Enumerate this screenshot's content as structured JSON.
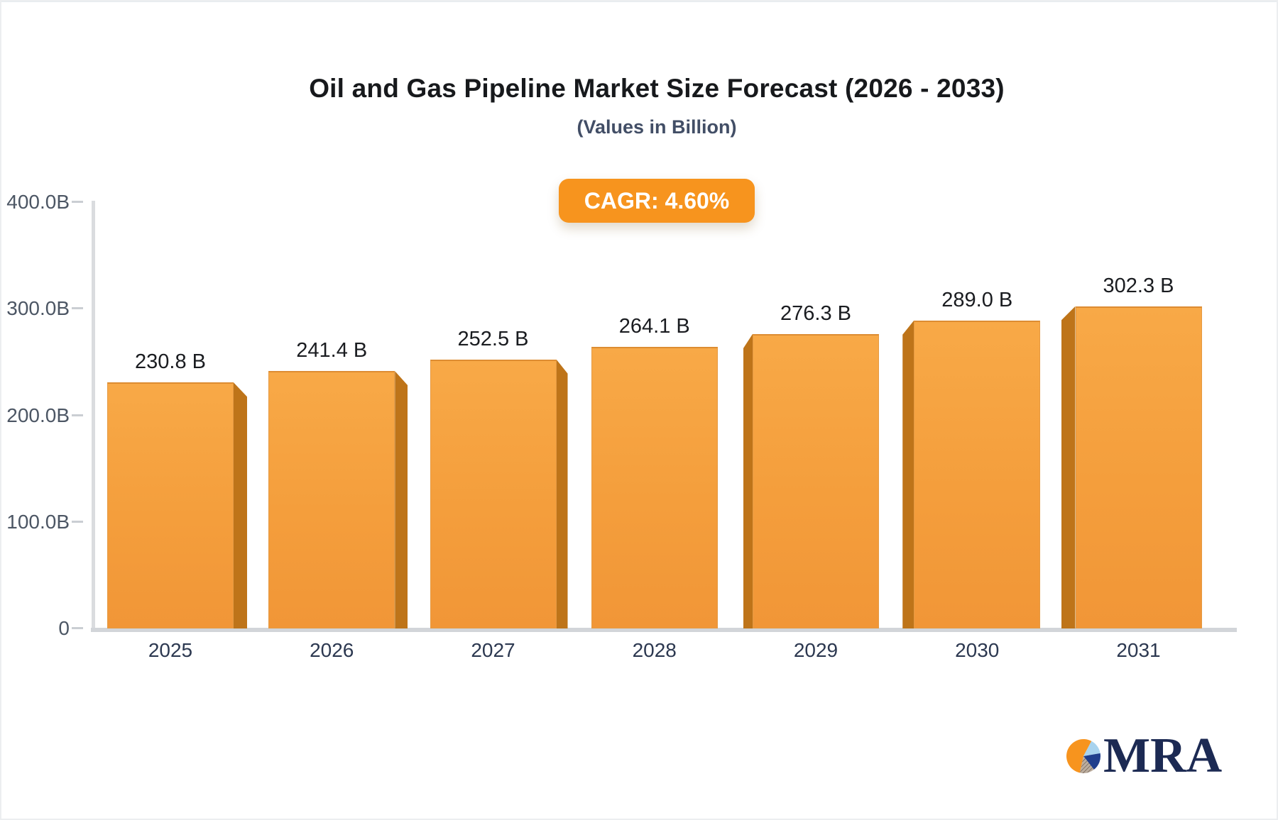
{
  "header": {
    "title": "Oil and Gas Pipeline Market Size Forecast (2026 - 2033)",
    "subtitle": "(Values in Billion)"
  },
  "badge": {
    "label": "CAGR: 4.60%",
    "bg": "#F7941E",
    "text_color": "#FFFFFF"
  },
  "chart_data": {
    "type": "bar",
    "title": "Oil and Gas Pipeline Market Size Forecast (2026 - 2033)",
    "subtitle": "(Values in Billion)",
    "cagr_annotation": "CAGR: 4.60%",
    "categories": [
      "2025",
      "2026",
      "2027",
      "2028",
      "2029",
      "2030",
      "2031"
    ],
    "values": [
      230.8,
      241.4,
      252.5,
      264.1,
      276.3,
      289.0,
      302.3
    ],
    "value_labels": [
      "230.8 B",
      "241.4 B",
      "252.5 B",
      "264.1 B",
      "276.3 B",
      "289.0 B",
      "302.3 B"
    ],
    "unit": "Billion",
    "ylim": [
      0,
      400
    ],
    "y_ticks": [
      {
        "value": 400,
        "label": "400.0B"
      },
      {
        "value": 300,
        "label": "300.0B"
      },
      {
        "value": 200,
        "label": "200.0B"
      },
      {
        "value": 100,
        "label": "100.0B"
      },
      {
        "value": 0,
        "label": "0"
      }
    ],
    "grid": false,
    "legend": false,
    "bar_style": "3d-perspective-center",
    "bar_color": "#F6A140",
    "bar_side_color": "#BE7419",
    "axis_color": "#D9DCDF"
  },
  "logo": {
    "text": "MRA",
    "pie_colors": {
      "orange": "#F7941E",
      "light_blue": "#A8D3EE",
      "navy": "#1F3E8C",
      "hatch": "#B5A89C"
    }
  }
}
